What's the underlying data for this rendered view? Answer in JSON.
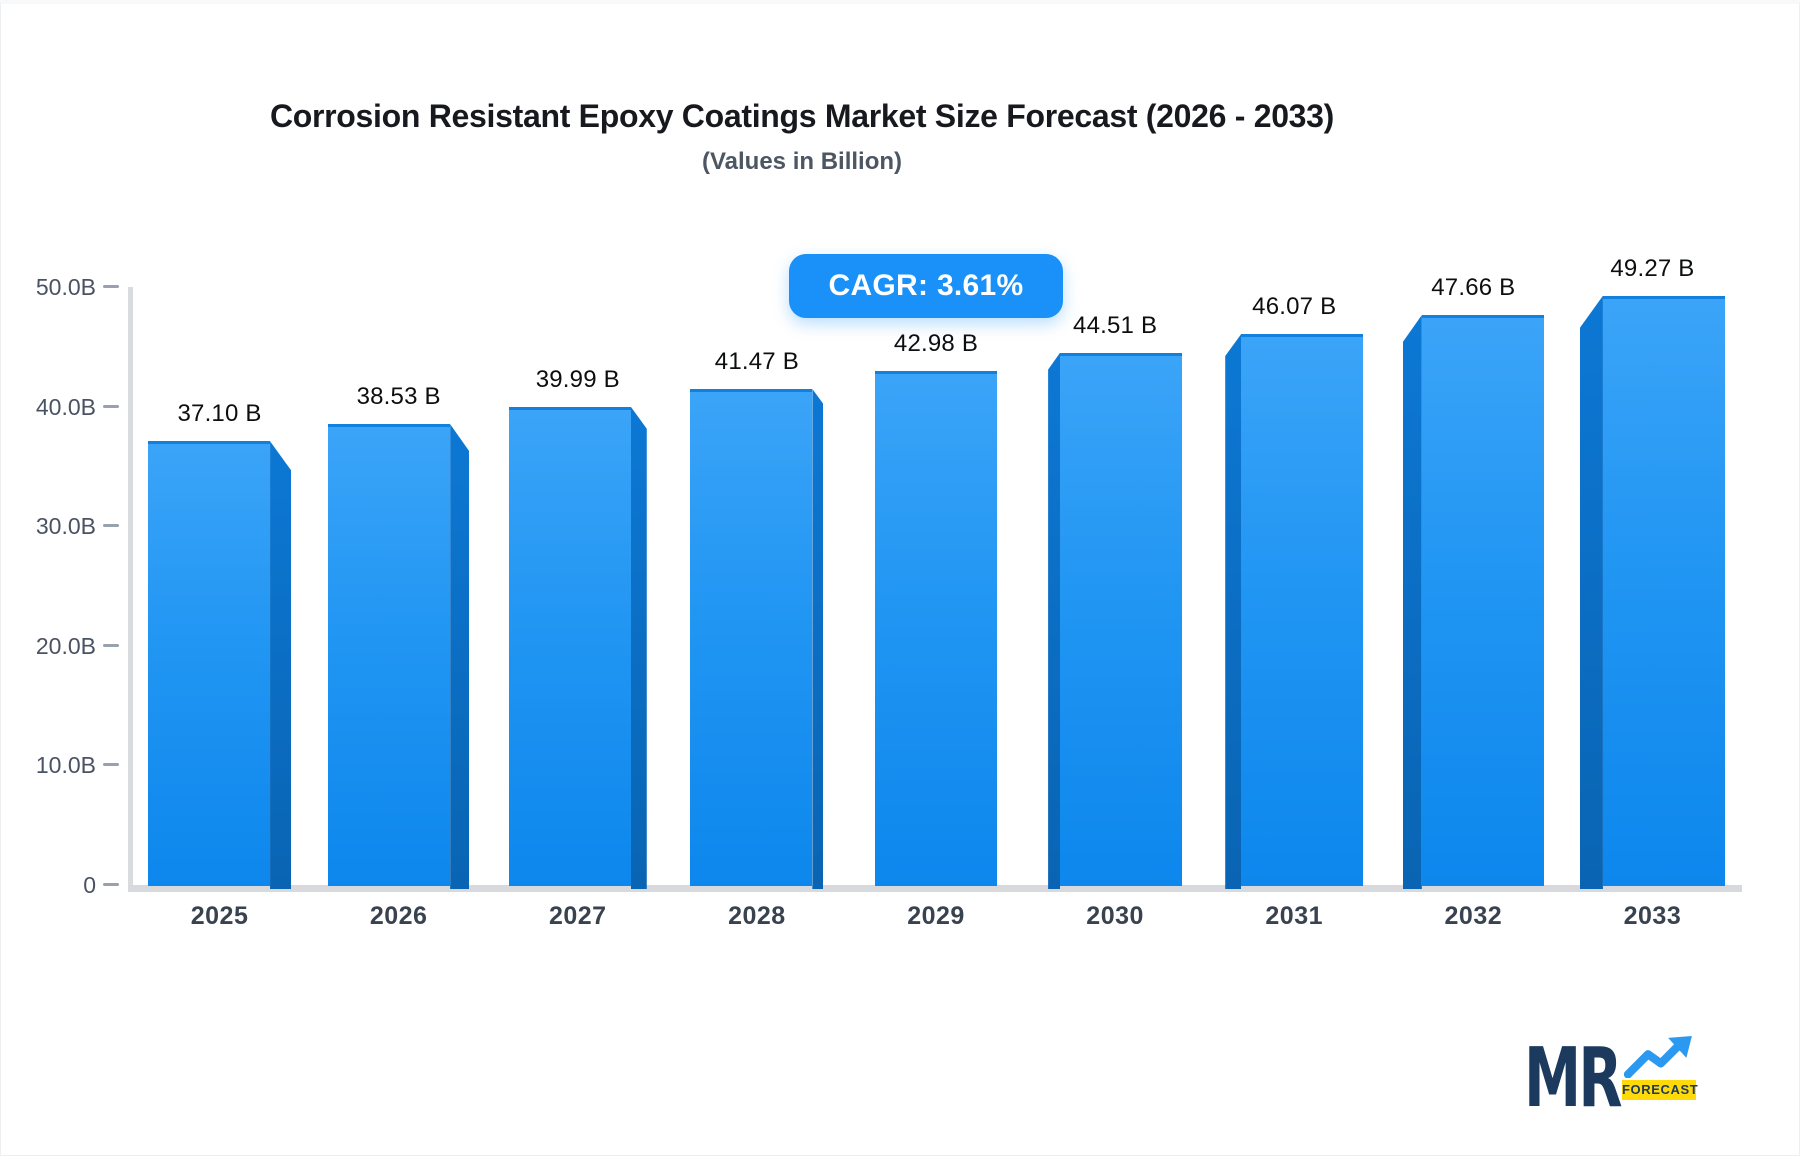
{
  "header": {
    "title": "Corrosion Resistant Epoxy Coatings Market Size Forecast (2026 - 2033)",
    "subtitle": "(Values in Billion)"
  },
  "badge": {
    "label": "CAGR: 3.61%",
    "background_color": "#1a91f8",
    "text_color": "#ffffff"
  },
  "chart_data": {
    "type": "bar",
    "title": "Corrosion Resistant Epoxy Coatings Market Size Forecast (2026 - 2033)",
    "subtitle": "(Values in Billion)",
    "categories": [
      "2025",
      "2026",
      "2027",
      "2028",
      "2029",
      "2030",
      "2031",
      "2032",
      "2033"
    ],
    "values": [
      37.1,
      38.53,
      39.99,
      41.47,
      42.98,
      44.51,
      46.07,
      47.66,
      49.27
    ],
    "labels": [
      "37.10 B",
      "38.53 B",
      "39.99 B",
      "41.47 B",
      "42.98 B",
      "44.51 B",
      "46.07 B",
      "47.66 B",
      "49.27 B"
    ],
    "y_ticks": [
      "50.0B",
      "40.0B",
      "30.0B",
      "20.0B",
      "10.0B",
      "0"
    ],
    "ylim": [
      0,
      50
    ],
    "xlabel": "",
    "ylabel": "",
    "grid": false,
    "legend": "none",
    "bar_style": "3d-beveled",
    "bar_color": "#2196f3",
    "bar_side_color": "#0a6fc4",
    "cagr_annotation": "CAGR: 3.61%"
  },
  "logo": {
    "text": "MR",
    "sub_text": "FORECAST",
    "navy_color": "#1c3a5e",
    "blue_color": "#2b99f0",
    "yellow_color": "#ffd908"
  }
}
